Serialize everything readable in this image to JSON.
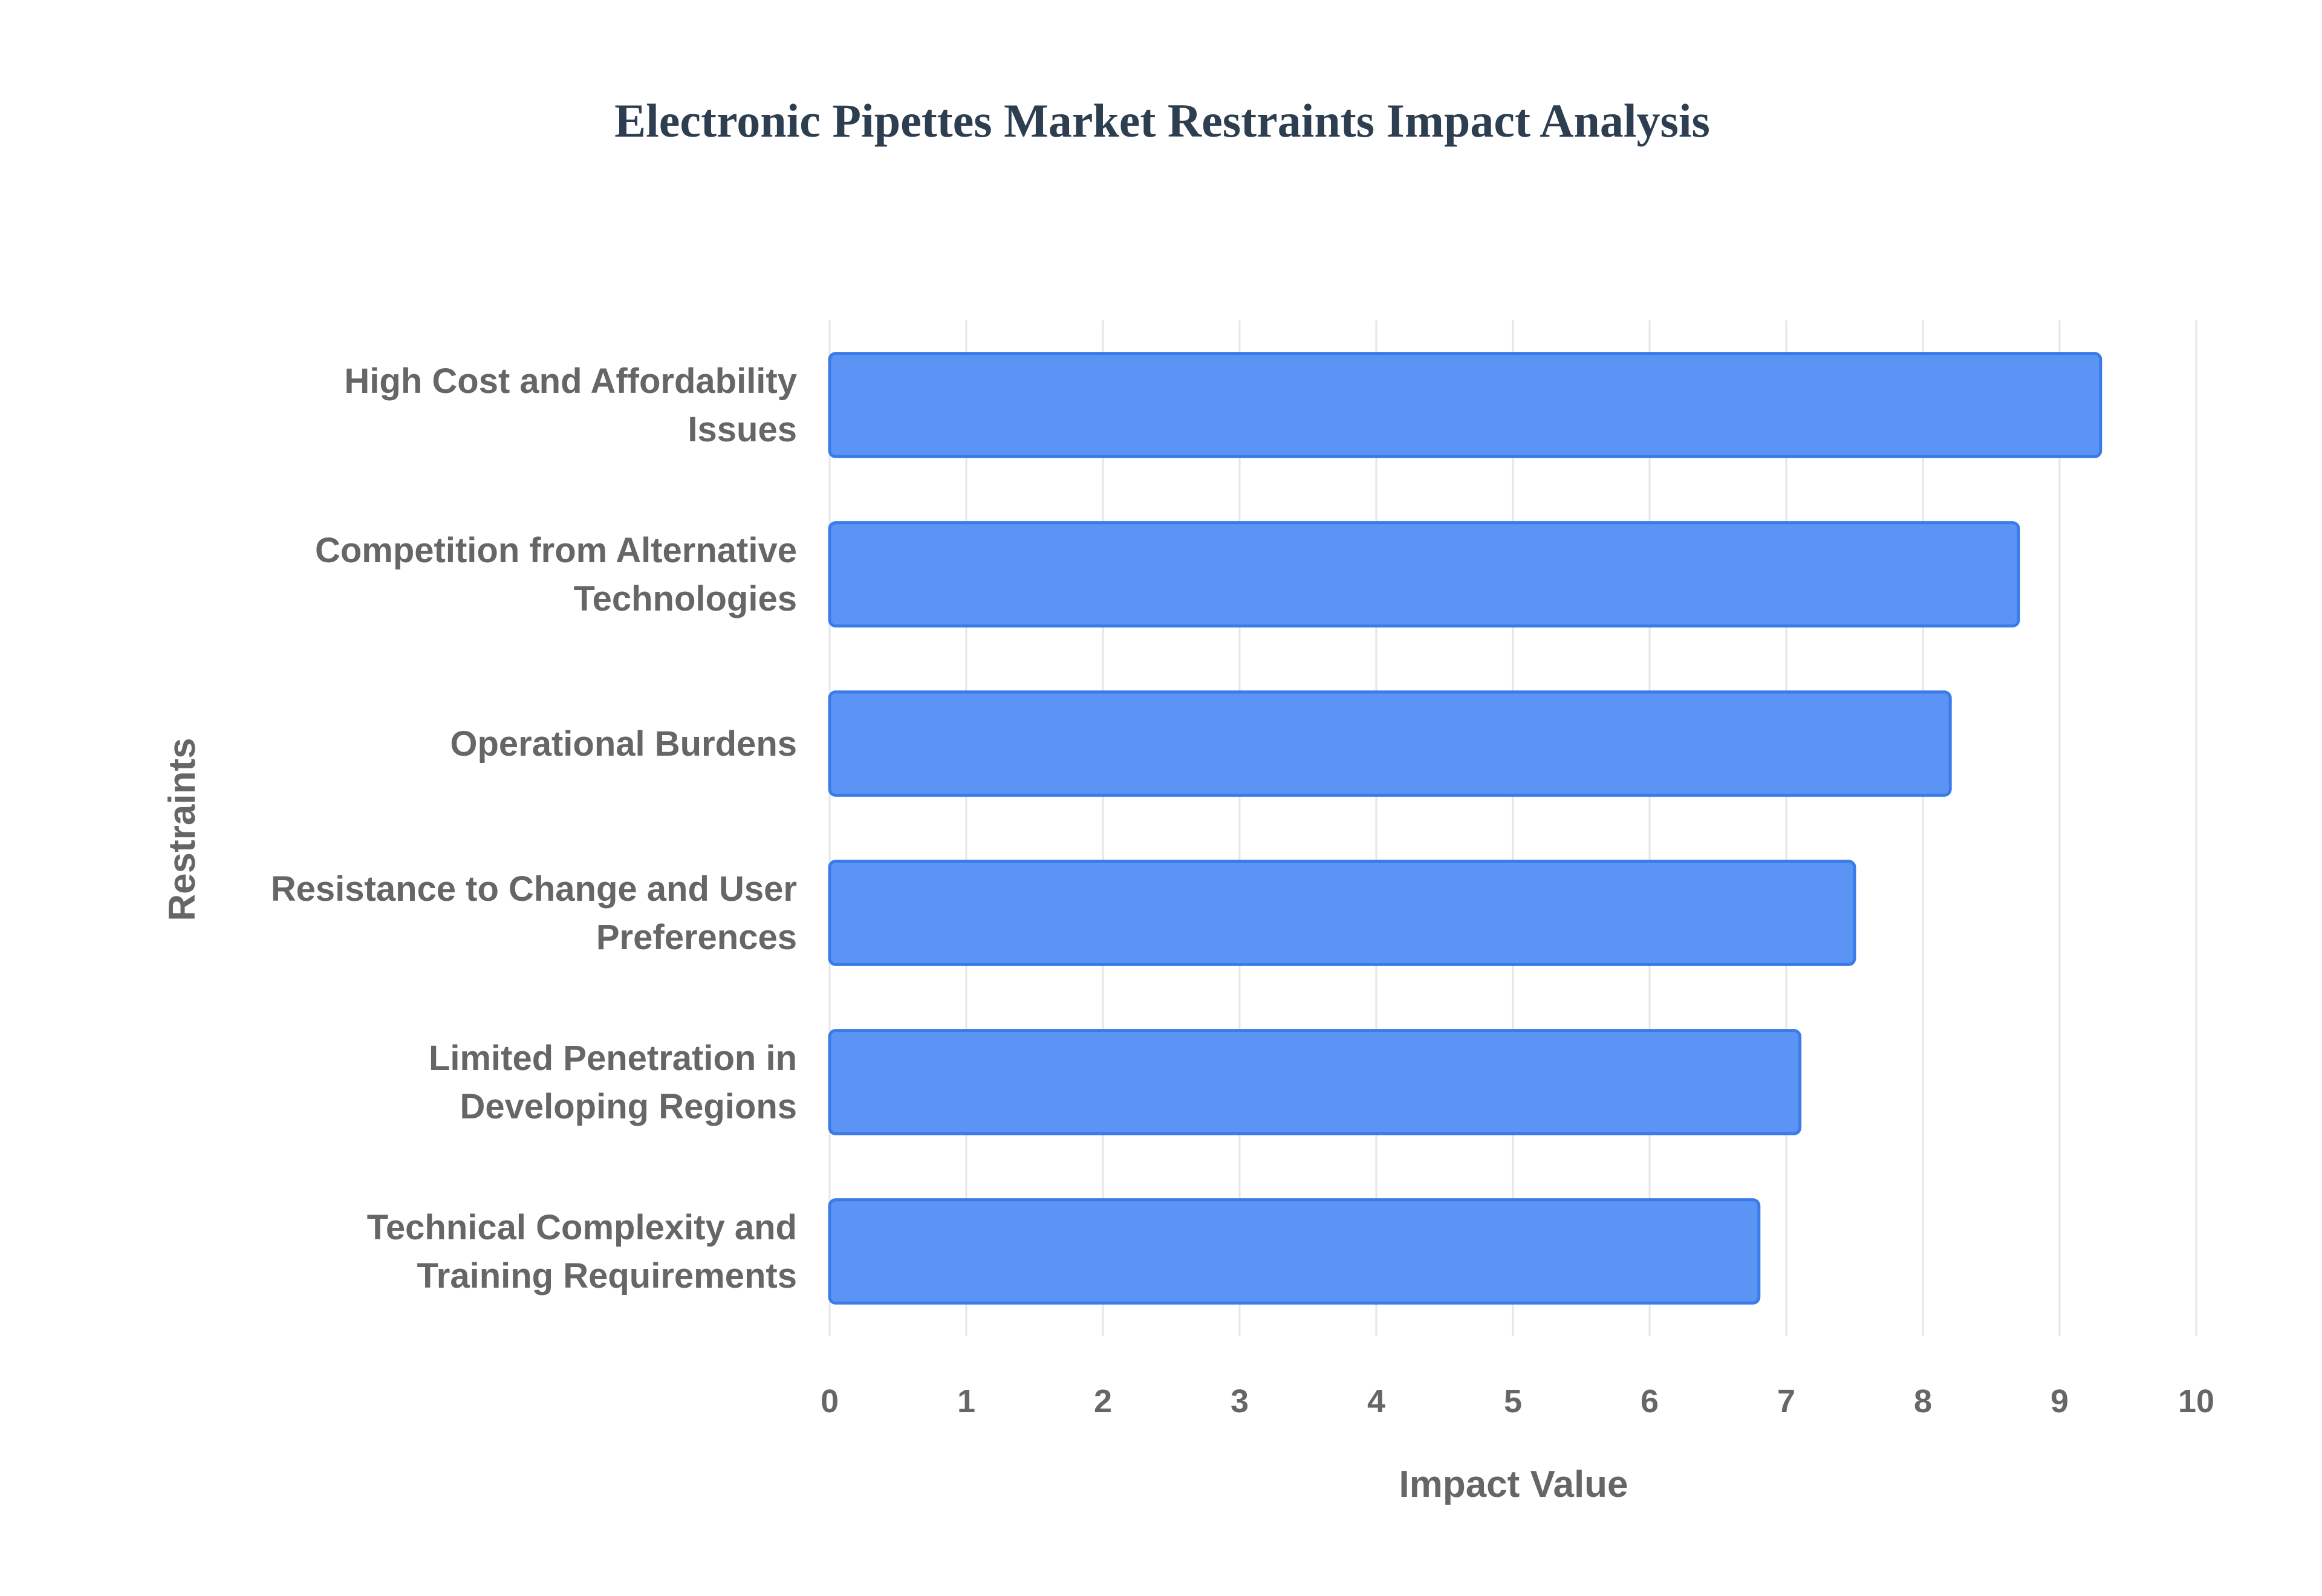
{
  "chart_data": {
    "type": "bar",
    "orientation": "horizontal",
    "title": "Electronic Pipettes Market Restraints Impact Analysis",
    "xlabel": "Impact Value",
    "ylabel": "Restraints",
    "categories": [
      [
        "High Cost and Affordability",
        "Issues"
      ],
      [
        "Competition from Alternative",
        "Technologies"
      ],
      [
        "Operational Burdens"
      ],
      [
        "Resistance to Change and User",
        "Preferences"
      ],
      [
        "Limited Penetration in",
        "Developing Regions"
      ],
      [
        "Technical Complexity and",
        "Training Requirements"
      ]
    ],
    "values": [
      9.3,
      8.7,
      8.2,
      7.5,
      7.1,
      6.8
    ],
    "xlim": [
      0,
      10
    ],
    "xticks": [
      "0",
      "1",
      "2",
      "3",
      "4",
      "5",
      "6",
      "7",
      "8",
      "9",
      "10"
    ],
    "grid": true,
    "legend": "none",
    "colors": {
      "bar_fill": "#5b94f5",
      "bar_stroke": "#3b7be8",
      "grid": "#e6e6e6",
      "title": "#2c3e50",
      "text": "#666666"
    }
  }
}
